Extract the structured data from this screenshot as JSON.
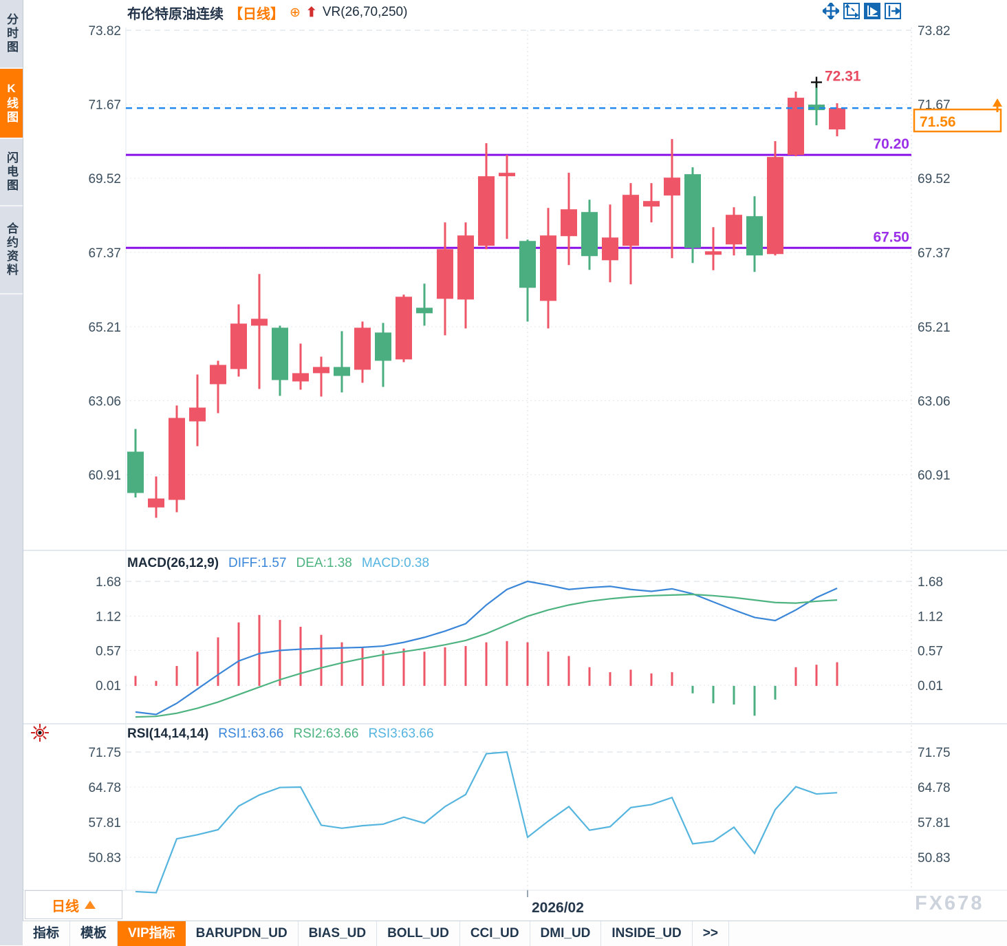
{
  "sidebar": {
    "tabs": [
      {
        "label": "分时图",
        "active": false
      },
      {
        "label": "K线图",
        "active": true
      },
      {
        "label": "闪电图",
        "active": false
      },
      {
        "label": "合约资料",
        "active": false
      }
    ]
  },
  "header": {
    "title": "布伦特原油连续",
    "period_tag": "【日线】",
    "plus_icon": "⊕",
    "arrow_icon": "⬆",
    "indicator_label": "VR(26,70,250)"
  },
  "toolbar_icons": [
    "pan-crosshair-icon",
    "axis-scale-icon",
    "axis-play-icon",
    "export-right-icon"
  ],
  "price_marks": {
    "marked_high_label": "72.31",
    "last_price_tag": "71.56",
    "level_labels": [
      "70.20",
      "67.50"
    ]
  },
  "macd_header": {
    "name": "MACD(26,12,9)",
    "diff": "DIFF:1.57",
    "dea": "DEA:1.38",
    "macd": "MACD:0.38"
  },
  "rsi_header": {
    "name": "RSI(14,14,14)",
    "rsi1": "RSI1:63.66",
    "rsi2": "RSI2:63.66",
    "rsi3": "RSI3:63.66"
  },
  "bottom": {
    "period_button": "日线",
    "date_label": "2026/02",
    "watermark": "FX678",
    "tabs": [
      "指标",
      "模板",
      "VIP指标",
      "BARUPDN_UD",
      "BIAS_UD",
      "BOLL_UD",
      "CCI_UD",
      "DMI_UD",
      "INSIDE_UD",
      ">>"
    ]
  },
  "colors": {
    "up_red": "#ee5566",
    "down_green": "#4bae80",
    "level_purple": "#8a10e8",
    "level_text_purple": "#9b30e8",
    "last_price_blue": "#2288ee",
    "tag_orange": "#ff8800",
    "diff_blue": "#3a86d8",
    "dea_green": "#4db381",
    "macd_lightblue": "#56b4e0",
    "rsi_line_blue": "#55b5de",
    "axis_text": "#3c4f5e",
    "high_label_red": "#e84a5f",
    "accent_orange": "#ff7a00"
  },
  "chart_data": [
    {
      "type": "candlestick",
      "title": "布伦特原油连续 日线 K线图",
      "note": "Chinese convention: red = up (close>open), green = down",
      "y_axis": [
        73.82,
        71.67,
        69.52,
        67.37,
        65.21,
        63.06,
        60.91
      ],
      "ylim": [
        59.5,
        73.82
      ],
      "levels": [
        70.2,
        67.5
      ],
      "last_price": 71.56,
      "marked_high": 72.31,
      "x_gridline_index": 19,
      "x_gridline_label": "2026/02",
      "candles_ohlc": [
        [
          61.58,
          62.24,
          60.25,
          60.38
        ],
        [
          59.96,
          60.86,
          59.66,
          60.22
        ],
        [
          60.18,
          62.92,
          59.82,
          62.56
        ],
        [
          62.46,
          63.82,
          61.74,
          62.86
        ],
        [
          63.54,
          64.22,
          62.7,
          64.1
        ],
        [
          63.98,
          65.86,
          63.76,
          65.3
        ],
        [
          65.24,
          66.74,
          63.4,
          65.44
        ],
        [
          65.18,
          65.24,
          63.2,
          63.66
        ],
        [
          63.62,
          64.72,
          63.38,
          63.86
        ],
        [
          63.86,
          64.34,
          63.18,
          64.04
        ],
        [
          64.04,
          65.08,
          63.3,
          63.78
        ],
        [
          63.96,
          65.36,
          63.58,
          65.18
        ],
        [
          65.04,
          65.32,
          63.46,
          64.22
        ],
        [
          64.26,
          66.14,
          64.18,
          66.08
        ],
        [
          65.76,
          66.46,
          65.24,
          65.6
        ],
        [
          66.02,
          68.24,
          64.96,
          67.46
        ],
        [
          66.0,
          68.24,
          65.16,
          67.86
        ],
        [
          67.56,
          70.54,
          67.46,
          69.58
        ],
        [
          69.58,
          70.2,
          67.76,
          69.68
        ],
        [
          67.7,
          67.74,
          65.36,
          66.34
        ],
        [
          65.96,
          68.66,
          65.16,
          67.86
        ],
        [
          67.84,
          69.68,
          67.0,
          68.62
        ],
        [
          68.54,
          68.9,
          66.86,
          67.26
        ],
        [
          67.14,
          68.76,
          66.5,
          67.8
        ],
        [
          67.56,
          69.38,
          66.44,
          69.04
        ],
        [
          68.7,
          69.38,
          68.24,
          68.86
        ],
        [
          69.02,
          70.66,
          67.2,
          69.54
        ],
        [
          69.64,
          69.84,
          67.06,
          67.5
        ],
        [
          67.3,
          68.1,
          66.85,
          67.4
        ],
        [
          67.6,
          68.68,
          67.28,
          68.46
        ],
        [
          68.42,
          69.0,
          66.8,
          67.28
        ],
        [
          67.32,
          70.6,
          67.28,
          70.14
        ],
        [
          70.2,
          72.04,
          70.16,
          71.86
        ],
        [
          71.66,
          72.31,
          71.06,
          71.5
        ],
        [
          70.94,
          71.7,
          70.74,
          71.56
        ]
      ]
    },
    {
      "type": "bar+line",
      "title": "MACD(26,12,9)",
      "y_axis": [
        1.68,
        1.12,
        0.57,
        0.01
      ],
      "diff": [
        -0.42,
        -0.46,
        -0.28,
        -0.05,
        0.18,
        0.4,
        0.52,
        0.57,
        0.59,
        0.6,
        0.61,
        0.62,
        0.64,
        0.7,
        0.78,
        0.88,
        1.0,
        1.3,
        1.55,
        1.68,
        1.62,
        1.55,
        1.58,
        1.6,
        1.55,
        1.52,
        1.56,
        1.48,
        1.35,
        1.22,
        1.1,
        1.05,
        1.22,
        1.42,
        1.57
      ],
      "dea": [
        -0.5,
        -0.49,
        -0.44,
        -0.36,
        -0.26,
        -0.14,
        -0.02,
        0.1,
        0.2,
        0.29,
        0.37,
        0.44,
        0.5,
        0.55,
        0.6,
        0.66,
        0.73,
        0.84,
        0.98,
        1.12,
        1.22,
        1.3,
        1.36,
        1.4,
        1.43,
        1.45,
        1.46,
        1.47,
        1.45,
        1.42,
        1.38,
        1.34,
        1.33,
        1.36,
        1.38
      ],
      "histogram": [
        0.16,
        0.08,
        0.32,
        0.55,
        0.78,
        1.02,
        1.14,
        1.06,
        0.95,
        0.82,
        0.7,
        0.62,
        0.57,
        0.6,
        0.55,
        0.62,
        0.64,
        0.7,
        0.72,
        0.7,
        0.55,
        0.48,
        0.3,
        0.22,
        0.26,
        0.2,
        0.22,
        -0.12,
        -0.28,
        -0.3,
        -0.48,
        -0.22,
        0.3,
        0.34,
        0.38
      ]
    },
    {
      "type": "line",
      "title": "RSI(14,14,14)",
      "y_axis": [
        71.75,
        64.78,
        57.81,
        50.83
      ],
      "rsi": [
        44.0,
        43.8,
        54.5,
        55.3,
        56.3,
        61.0,
        63.2,
        64.7,
        64.78,
        57.2,
        56.6,
        57.1,
        57.4,
        58.8,
        57.6,
        60.9,
        63.3,
        71.4,
        71.75,
        54.8,
        58.0,
        60.9,
        56.2,
        56.9,
        60.7,
        61.3,
        62.7,
        53.5,
        54.0,
        56.8,
        51.6,
        60.3,
        64.85,
        63.4,
        63.66
      ]
    }
  ]
}
